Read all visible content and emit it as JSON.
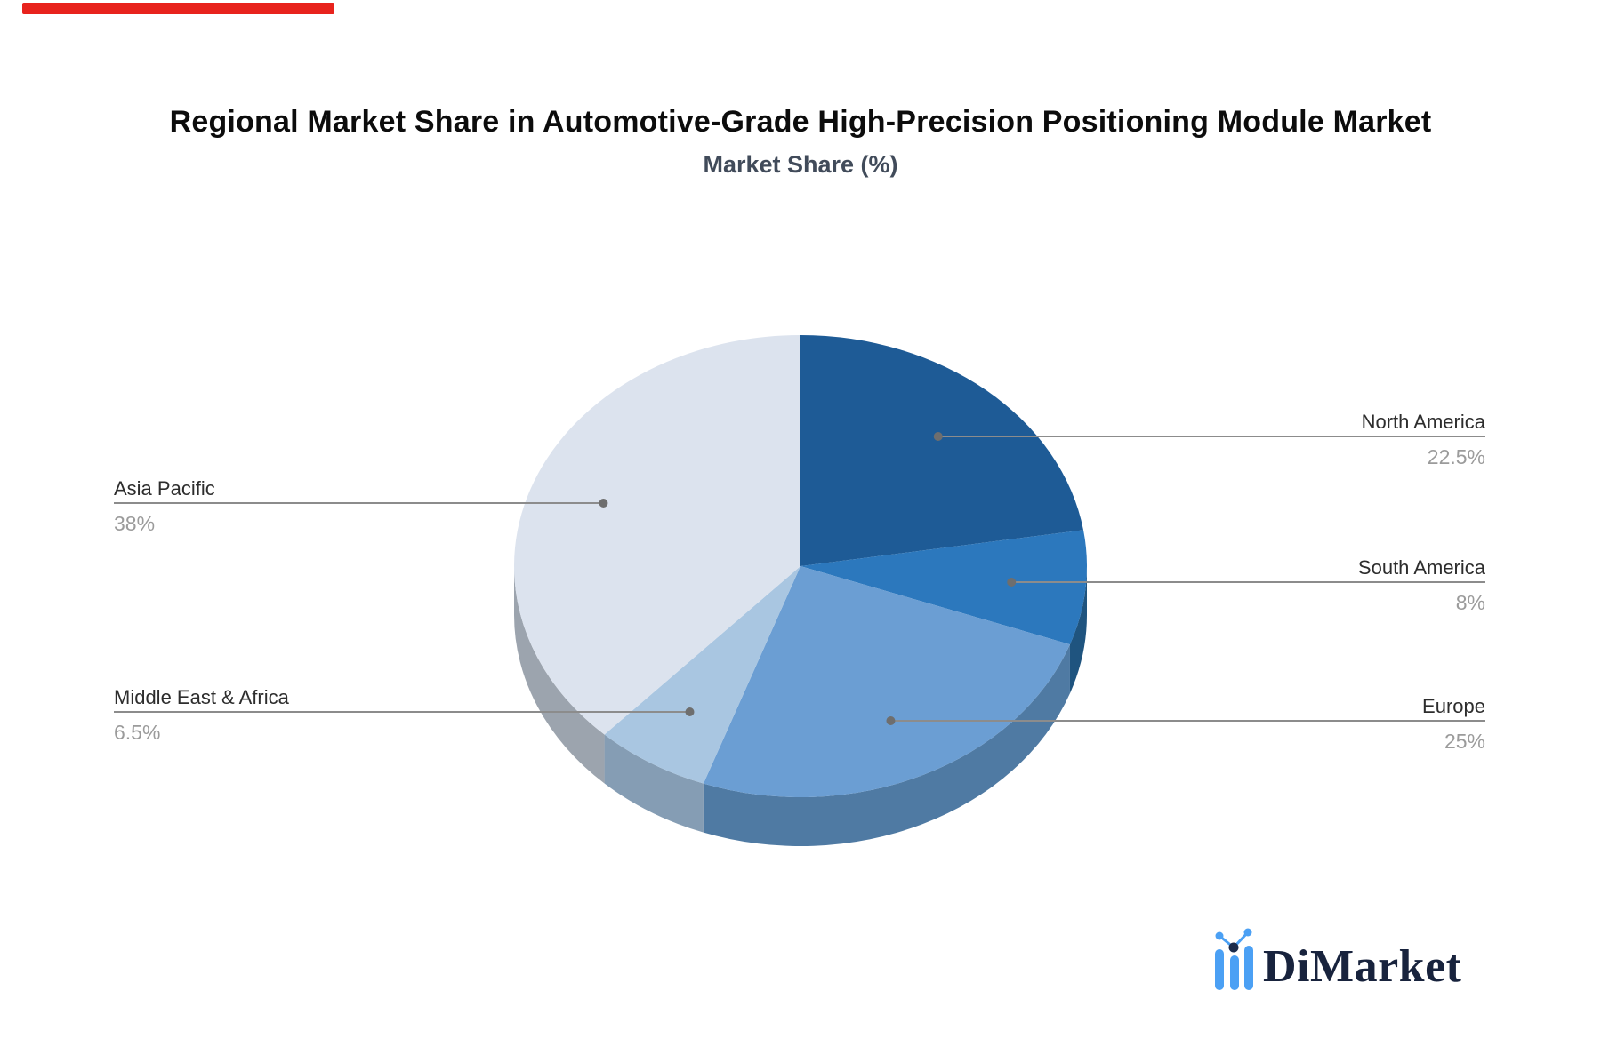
{
  "page": {
    "top_bar_color": "#e8231d",
    "background": "#ffffff"
  },
  "header": {
    "title": "Regional Market Share in Automotive-Grade High-Precision Positioning Module Market",
    "subtitle": "Market Share (%)"
  },
  "chart_data": {
    "type": "pie",
    "title": "Regional Market Share in Automotive-Grade High-Precision Positioning Module Market",
    "subtitle": "Market Share (%)",
    "unit": "%",
    "start_angle": "12 o'clock, clockwise",
    "style": "3d-pie",
    "slices": [
      {
        "label": "North America",
        "value": 22.5,
        "display": "22.5%",
        "color": "#1e5b96",
        "side_color": "#1f547f"
      },
      {
        "label": "South America",
        "value": 8,
        "display": "8%",
        "color": "#2c78bd",
        "side_color": "#1f547f"
      },
      {
        "label": "Europe",
        "value": 25,
        "display": "25%",
        "color": "#6b9ed3",
        "side_color": "#4f7aa3"
      },
      {
        "label": "Middle East & Africa",
        "value": 6.5,
        "display": "6.5%",
        "color": "#a9c6e1",
        "side_color": "#859db4"
      },
      {
        "label": "Asia Pacific",
        "value": 38,
        "display": "38%",
        "color": "#dce3ee",
        "side_color": "#9ca4ae"
      }
    ],
    "label_color": "#2d2d2d",
    "value_color": "#9b9b9b",
    "leader_line_color": "#8c8c8c",
    "leader_dot_color": "#6e6e6e",
    "legend": "none"
  },
  "logo": {
    "text": "DiMarket",
    "text_color": "#18233d",
    "icon": "bar-line-chart-icon",
    "icon_color": "#4ba0f4",
    "icon_dark_color": "#1b2b4b"
  }
}
